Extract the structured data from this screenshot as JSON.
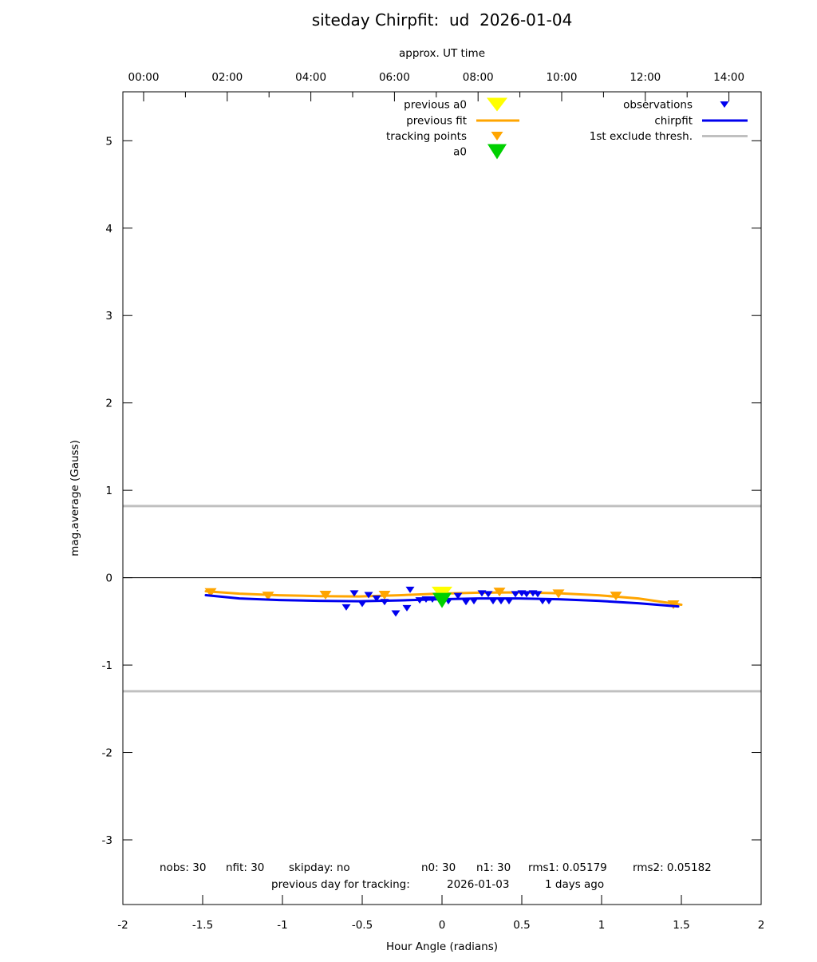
{
  "chart_data": {
    "type": "scatter",
    "title": "siteday Chirpfit:  ud  2026-01-04",
    "x2label": "approx. UT time",
    "xlabel": "Hour Angle (radians)",
    "ylabel": "mag.average (Gauss)",
    "xlim": [
      -2,
      2
    ],
    "ylim": [
      -3.74,
      5.56
    ],
    "grid": false,
    "zero_axis": 0,
    "x_ticks": {
      "labels": [
        "-2",
        "-1.5",
        "-1",
        "-0.5",
        "0",
        "0.5",
        "1",
        "1.5",
        "2"
      ],
      "values": [
        -2,
        -1.5,
        -1,
        -0.5,
        0,
        0.5,
        1,
        1.5,
        2
      ]
    },
    "y_ticks": {
      "labels": [
        "-3",
        "-2",
        "-1",
        "0",
        "1",
        "2",
        "3",
        "4",
        "5"
      ],
      "values": [
        -3,
        -2,
        -1,
        0,
        1,
        2,
        3,
        4,
        5
      ]
    },
    "x2_ticks": {
      "major": [
        {
          "label": "00:00",
          "ha": -1.87
        },
        {
          "label": "02:00",
          "ha": -1.346
        },
        {
          "label": "04:00",
          "ha": -0.822
        },
        {
          "label": "06:00",
          "ha": -0.298
        },
        {
          "label": "08:00",
          "ha": 0.226
        },
        {
          "label": "10:00",
          "ha": 0.75
        },
        {
          "label": "12:00",
          "ha": 1.274
        },
        {
          "label": "14:00",
          "ha": 1.798
        }
      ],
      "minor_ha": [
        -1.608,
        -1.084,
        -0.56,
        -0.036,
        0.488,
        1.012,
        1.536
      ]
    },
    "series": {
      "exclude_threshold": {
        "name": "1st exclude thresh.",
        "type": "hlines",
        "color": "#c0c0c0",
        "values": [
          0.82,
          -1.3
        ]
      },
      "previous_fit": {
        "name": "previous fit",
        "type": "line",
        "color": "#ffa500",
        "points": [
          [
            -1.48,
            -0.155
          ],
          [
            -1.27,
            -0.183
          ],
          [
            -1.02,
            -0.201
          ],
          [
            -0.77,
            -0.211
          ],
          [
            -0.52,
            -0.215
          ],
          [
            -0.27,
            -0.201
          ],
          [
            -0.02,
            -0.183
          ],
          [
            0.23,
            -0.172
          ],
          [
            0.48,
            -0.168
          ],
          [
            0.73,
            -0.178
          ],
          [
            0.98,
            -0.201
          ],
          [
            1.23,
            -0.237
          ],
          [
            1.5,
            -0.31
          ]
        ]
      },
      "chirpfit": {
        "name": "chirpfit",
        "type": "line",
        "color": "#0000ee",
        "points": [
          [
            -1.48,
            -0.2
          ],
          [
            -1.27,
            -0.237
          ],
          [
            -1.02,
            -0.256
          ],
          [
            -0.77,
            -0.265
          ],
          [
            -0.52,
            -0.269
          ],
          [
            -0.27,
            -0.26
          ],
          [
            -0.02,
            -0.247
          ],
          [
            0.23,
            -0.237
          ],
          [
            0.48,
            -0.237
          ],
          [
            0.73,
            -0.247
          ],
          [
            0.98,
            -0.265
          ],
          [
            1.23,
            -0.292
          ],
          [
            1.48,
            -0.329
          ]
        ]
      },
      "tracking_points": {
        "name": "tracking points",
        "type": "points",
        "marker": "triangle-down",
        "color": "#ffa500",
        "points": [
          [
            -1.45,
            -0.17
          ],
          [
            -1.09,
            -0.21
          ],
          [
            -0.73,
            -0.2
          ],
          [
            -0.36,
            -0.2
          ],
          [
            0.0,
            -0.175
          ],
          [
            0.36,
            -0.165
          ],
          [
            0.73,
            -0.185
          ],
          [
            1.09,
            -0.21
          ],
          [
            1.45,
            -0.31
          ]
        ]
      },
      "previous_a0": {
        "name": "previous a0",
        "type": "points",
        "marker": "triangle-down",
        "color": "#ffff00",
        "points": [
          [
            0.0,
            -0.18
          ]
        ]
      },
      "a0": {
        "name": "a0",
        "type": "points",
        "marker": "triangle-down",
        "color": "#00d000",
        "points": [
          [
            0.0,
            -0.26
          ]
        ]
      },
      "observations": {
        "name": "observations",
        "type": "points",
        "marker": "triangle-down",
        "color": "#0000ee",
        "points": [
          [
            -0.6,
            -0.34
          ],
          [
            -0.55,
            -0.18
          ],
          [
            -0.5,
            -0.3
          ],
          [
            -0.46,
            -0.2
          ],
          [
            -0.41,
            -0.24
          ],
          [
            -0.36,
            -0.28
          ],
          [
            -0.29,
            -0.41
          ],
          [
            -0.22,
            -0.35
          ],
          [
            -0.2,
            -0.14
          ],
          [
            -0.14,
            -0.26
          ],
          [
            -0.1,
            -0.25
          ],
          [
            -0.06,
            -0.25
          ],
          [
            -0.02,
            -0.24
          ],
          [
            0.01,
            -0.26
          ],
          [
            0.04,
            -0.27
          ],
          [
            0.1,
            -0.21
          ],
          [
            0.15,
            -0.28
          ],
          [
            0.2,
            -0.27
          ],
          [
            0.25,
            -0.18
          ],
          [
            0.29,
            -0.19
          ],
          [
            0.32,
            -0.27
          ],
          [
            0.37,
            -0.27
          ],
          [
            0.42,
            -0.27
          ],
          [
            0.46,
            -0.19
          ],
          [
            0.5,
            -0.18
          ],
          [
            0.53,
            -0.19
          ],
          [
            0.57,
            -0.18
          ],
          [
            0.6,
            -0.19
          ],
          [
            0.63,
            -0.27
          ],
          [
            0.67,
            -0.27
          ]
        ]
      }
    },
    "legend": {
      "left": [
        {
          "label": "previous a0",
          "swatch": "triangle",
          "color": "#ffff00",
          "w": 26,
          "h": 17
        },
        {
          "label": "previous fit",
          "swatch": "line",
          "color": "#ffa500"
        },
        {
          "label": "tracking points",
          "swatch": "triangle",
          "color": "#ffa500",
          "w": 15,
          "h": 11
        },
        {
          "label": "a0",
          "swatch": "triangle",
          "color": "#00d000",
          "w": 24,
          "h": 19
        }
      ],
      "right": [
        {
          "label": "observations",
          "swatch": "triangle",
          "color": "#0000ee",
          "w": 11,
          "h": 8
        },
        {
          "label": "chirpfit",
          "swatch": "line",
          "color": "#0000ee"
        },
        {
          "label": "1st exclude thresh.",
          "swatch": "line",
          "color": "#c0c0c0"
        }
      ]
    },
    "stats": {
      "line1_segments": [
        "nobs: 30",
        "nfit: 30",
        "skipday: no",
        "n0: 30",
        "n1: 30",
        "rms1: 0.05179",
        "rms2: 0.05182"
      ],
      "line2_segments": [
        "previous day for tracking:",
        "2026-01-03",
        "1 days ago"
      ]
    }
  },
  "colors": {
    "frame": "#000000",
    "background": "#ffffff",
    "observations": "#0000ee",
    "chirpfit": "#0000ee",
    "previous_fit": "#ffa500",
    "tracking_points": "#ffa500",
    "previous_a0": "#ffff00",
    "a0": "#00d000",
    "threshold": "#c0c0c0"
  }
}
